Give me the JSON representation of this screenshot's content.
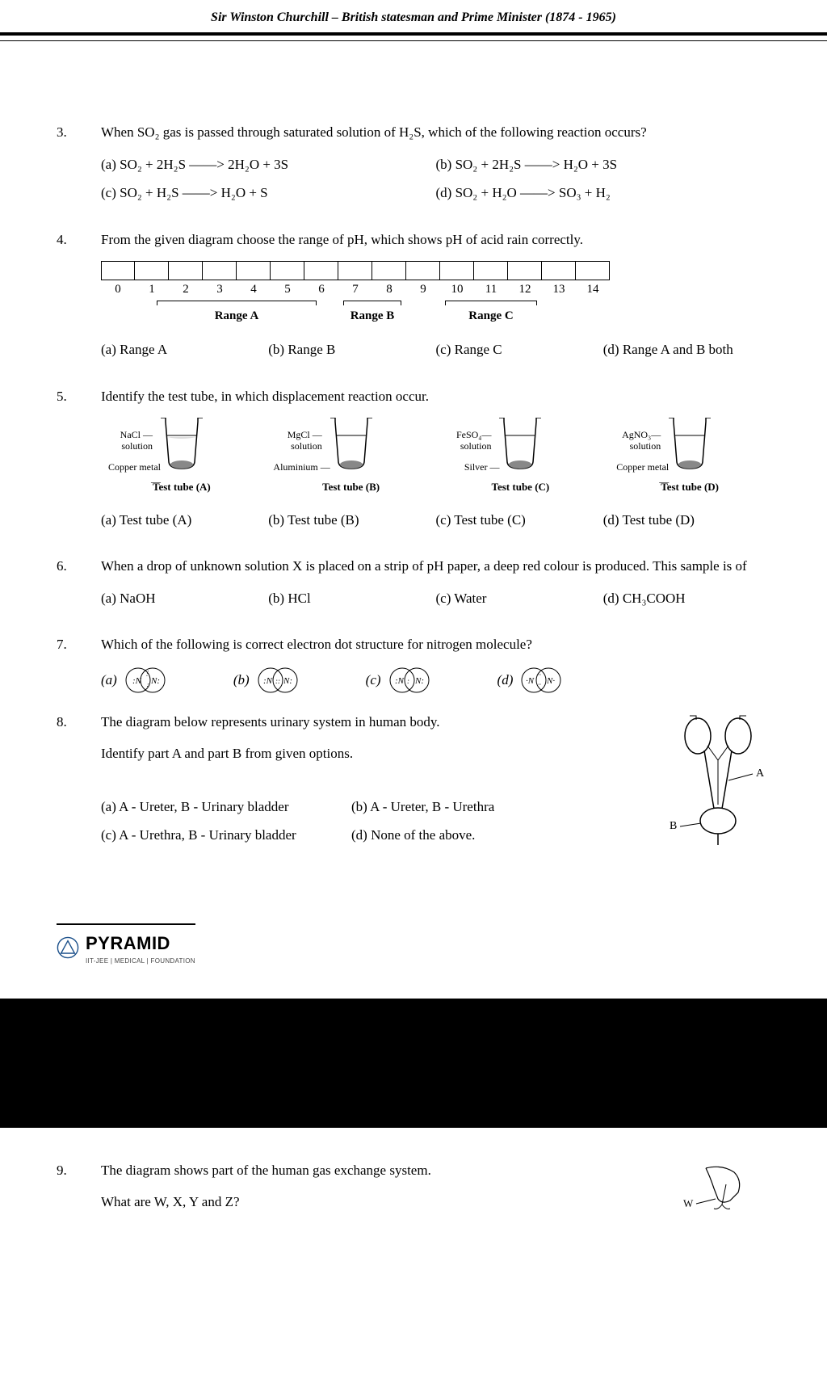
{
  "quote": "Sir Winston Churchill – British statesman and Prime Minister (1874 - 1965)",
  "q3": {
    "num": "3.",
    "text": "When SO₂ gas is passed through saturated solution of H₂S, which of the following reaction occurs?",
    "a": "(a) SO₂ + 2H₂S ——> 2H₂O + 3S",
    "b": "(b) SO₂ + 2H₂S ——> H₂O + 3S",
    "c": "(c) SO₂ + H₂S ——> H₂O + S",
    "d": "(d) SO₂ + H₂O ——> SO₃ + H₂"
  },
  "q4": {
    "num": "4.",
    "text": "From the given diagram choose the range of pH, which shows pH of acid rain correctly.",
    "scale": [
      "0",
      "1",
      "2",
      "3",
      "4",
      "5",
      "6",
      "7",
      "8",
      "9",
      "10",
      "11",
      "12",
      "13",
      "14"
    ],
    "rangeA": "Range A",
    "rangeB": "Range B",
    "rangeC": "Range C",
    "a": "(a) Range A",
    "b": "(b) Range B",
    "c": "(c) Range C",
    "d": "(d) Range A and B both"
  },
  "q5": {
    "num": "5.",
    "text": "Identify the test tube, in which displacement reaction occur.",
    "tubes": {
      "A": {
        "sol": "NaCl",
        "sol2": "solution",
        "metal": "Copper metal",
        "cap": "Test tube (A)"
      },
      "B": {
        "sol": "MgCl",
        "sol2": "solution",
        "metal": "Aluminium",
        "cap": "Test tube (B)"
      },
      "C": {
        "sol": "FeSO₄",
        "sol2": "solution",
        "metal": "Silver",
        "cap": "Test tube (C)"
      },
      "D": {
        "sol": "AgNO₃",
        "sol2": "solution",
        "metal": "Copper metal",
        "cap": "Test tube (D)"
      }
    },
    "a": "(a) Test tube (A)",
    "b": "(b) Test tube (B)",
    "c": "(c) Test tube (C)",
    "d": "(d) Test tube (D)"
  },
  "q6": {
    "num": "6.",
    "text": "When a drop of unknown solution X is placed on a strip of pH paper, a deep red colour is produced. This sample is of",
    "a": "(a) NaOH",
    "b": "(b) HCl",
    "c": "(c) Water",
    "d": "(d) CH₃COOH"
  },
  "q7": {
    "num": "7.",
    "text": "Which of the following is correct electron dot structure for nitrogen molecule?",
    "a": "(a)",
    "b": "(b)",
    "c": "(c)",
    "d": "(d)"
  },
  "q8": {
    "num": "8.",
    "text": "The diagram below represents urinary system in human body.",
    "text2": "Identify part A and part B from given options.",
    "labA": "A",
    "labB": "B",
    "a": "(a) A - Ureter, B - Urinary bladder",
    "b": "(b) A - Ureter, B - Urethra",
    "c": "(c) A - Urethra, B - Urinary bladder",
    "d": "(d) None of the above."
  },
  "q9": {
    "num": "9.",
    "text": "The diagram shows part of the human gas exchange system.",
    "text2": "What are W, X, Y and Z?",
    "labW": "W"
  },
  "logo": {
    "name": "PYRAMID",
    "sub": "IIT-JEE | MEDICAL | FOUNDATION"
  },
  "colors": {
    "text": "#000000",
    "bg": "#ffffff",
    "logo_blue": "#1a4f8a"
  }
}
